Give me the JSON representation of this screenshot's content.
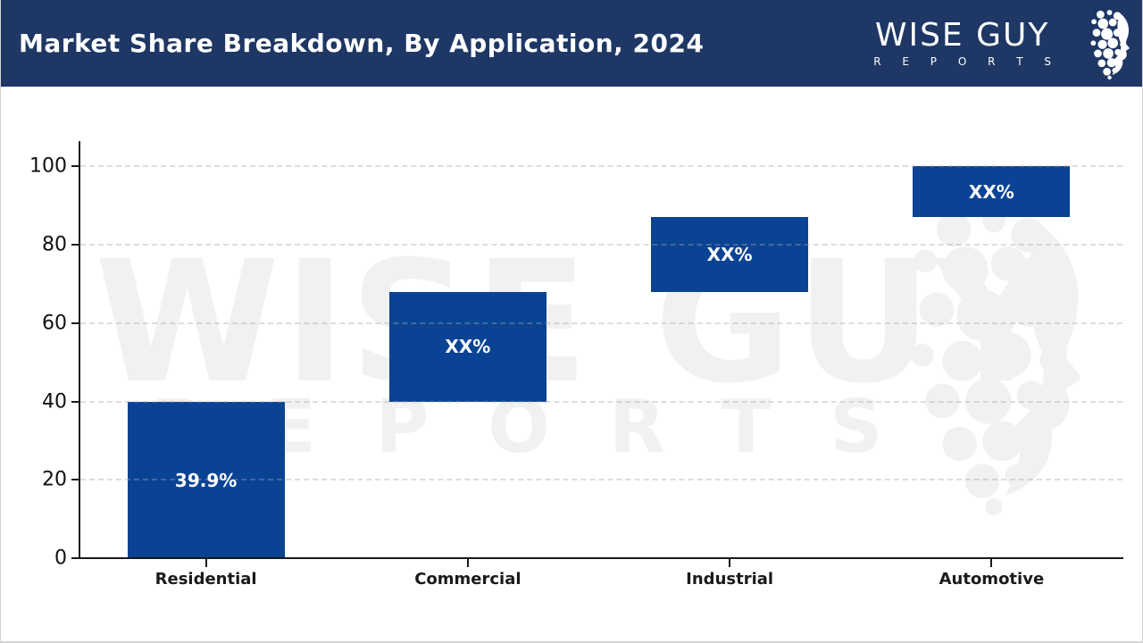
{
  "header": {
    "title": "Market Share Breakdown, By Application, 2024",
    "background_color": "#1e3765",
    "logo": {
      "line1": "WISE GUY",
      "line2": "R E P O R T S"
    }
  },
  "watermark": {
    "line1": "WISE GUY",
    "line2": "REPORTS"
  },
  "chart_data": {
    "type": "bar",
    "subtype": "floating-waterfall",
    "title": "Market Share Breakdown, By Application, 2024",
    "categories": [
      "Residential",
      "Commercial",
      "Industrial",
      "Automotive"
    ],
    "segments": [
      {
        "category": "Residential",
        "start": 0,
        "end": 39.9,
        "label": "39.9%"
      },
      {
        "category": "Commercial",
        "start": 39.9,
        "end": 68,
        "label": "XX%"
      },
      {
        "category": "Industrial",
        "start": 68,
        "end": 87,
        "label": "XX%"
      },
      {
        "category": "Automotive",
        "start": 87,
        "end": 100,
        "label": "XX%"
      }
    ],
    "xlabel": "",
    "ylabel": "",
    "yticks": [
      0,
      20,
      40,
      60,
      80,
      100
    ],
    "ylim": [
      0,
      105
    ],
    "grid": "horizontal-dashed",
    "legend": "none",
    "bar_color": "#0a4394",
    "bar_label_color": "#ffffff"
  }
}
